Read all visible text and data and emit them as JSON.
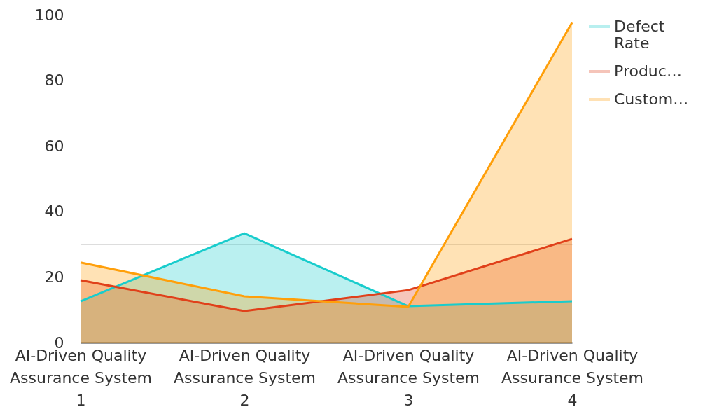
{
  "chart_data": {
    "type": "area",
    "categories": [
      "AI-Driven Quality Assurance System 1",
      "AI-Driven Quality Assurance System 2",
      "AI-Driven Quality Assurance System 3",
      "AI-Driven Quality Assurance System 4"
    ],
    "series": [
      {
        "name": "Defect Rate",
        "color": "#19cccc",
        "values": [
          12.6,
          33.3,
          11.1,
          12.6
        ]
      },
      {
        "name": "Produc…",
        "color": "#e0401a",
        "values": [
          19.0,
          9.6,
          16.0,
          31.6
        ]
      },
      {
        "name": "Custom…",
        "color": "#ff9f0a",
        "values": [
          24.4,
          14.1,
          10.9,
          97.6
        ]
      }
    ],
    "ylim": [
      0,
      100
    ],
    "yticks": [
      0,
      {
        "value": 10,
        "label": null
      },
      20,
      {
        "value": 30,
        "label": null
      },
      40,
      {
        "value": 50,
        "label": null
      },
      60,
      {
        "value": 70,
        "label": null
      },
      80,
      {
        "value": 90,
        "label": null
      },
      100
    ],
    "grid": "y",
    "legend": "top right"
  }
}
